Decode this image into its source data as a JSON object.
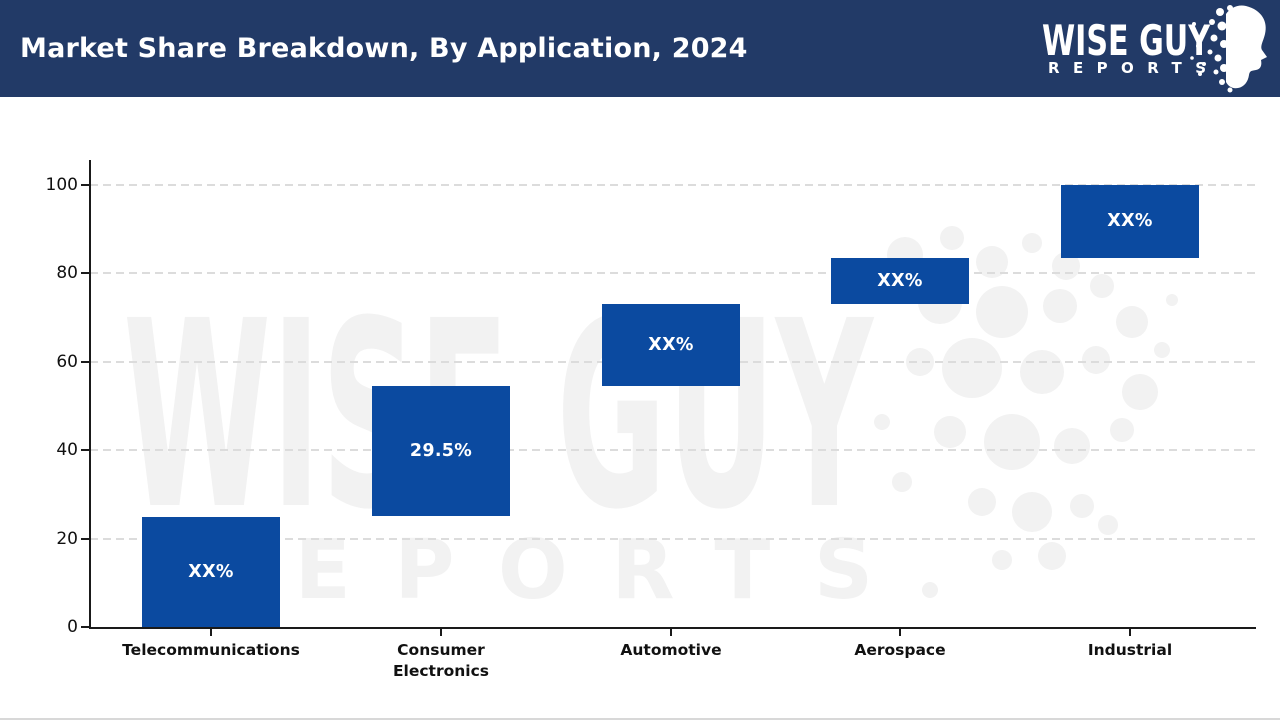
{
  "header": {
    "title": "Market Share Breakdown, By Application, 2024",
    "logo": {
      "wordmark": "WISE GUY",
      "subtext": "REPORTS"
    }
  },
  "watermark": {
    "line1": "WISE GUY",
    "line2": "REPORTS"
  },
  "chart_data": {
    "type": "bar",
    "subtype": "waterfall",
    "title": "Market Share Breakdown, By Application, 2024",
    "categories": [
      "Telecommunications",
      "Consumer\nElectronics",
      "Automotive",
      "Aerospace",
      "Industrial"
    ],
    "segments": [
      {
        "category": "Telecommunications",
        "start": 0,
        "end": 25,
        "label": "XX%"
      },
      {
        "category": "Consumer Electronics",
        "start": 25,
        "end": 54.5,
        "label": "29.5%"
      },
      {
        "category": "Automotive",
        "start": 54.5,
        "end": 73,
        "label": "XX%"
      },
      {
        "category": "Aerospace",
        "start": 73,
        "end": 83.5,
        "label": "XX%"
      },
      {
        "category": "Industrial",
        "start": 83.5,
        "end": 100,
        "label": "XX%"
      }
    ],
    "yticks": [
      0,
      20,
      40,
      60,
      80,
      100
    ],
    "ylim": [
      0,
      105
    ],
    "xlabel": "",
    "ylabel": "",
    "grid": "horizontal-dashed",
    "legend": "none",
    "bar_color": "#0b4aa0",
    "bar_label_color": "#ffffff",
    "axis_color": "#1a1a1a",
    "gridline_color": "#dcdcdc",
    "header_color": "#223a67"
  }
}
